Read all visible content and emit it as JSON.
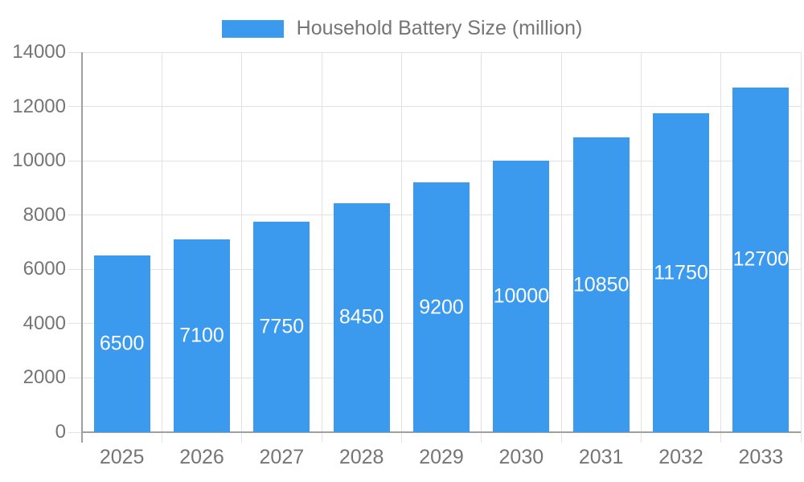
{
  "legend": {
    "label": "Household Battery Size (million)"
  },
  "colors": {
    "bar": "#3b99ee",
    "axis": "#a0a0a0",
    "grid": "#e2e2e2",
    "label": "#757575",
    "bar_label": "#ffffff",
    "background": "#ffffff"
  },
  "chart_data": {
    "type": "bar",
    "title": "Household Battery Size (million)",
    "categories": [
      "2025",
      "2026",
      "2027",
      "2028",
      "2029",
      "2030",
      "2031",
      "2032",
      "2033"
    ],
    "values": [
      6500,
      7100,
      7750,
      8450,
      9200,
      10000,
      10850,
      11750,
      12700
    ],
    "xlabel": "",
    "ylabel": "",
    "ylim": [
      0,
      14000
    ],
    "ytick_step": 2000,
    "ytick_labels": [
      "0",
      "2000",
      "4000",
      "6000",
      "8000",
      "10000",
      "12000",
      "14000"
    ],
    "grid": true,
    "legend_position": "top-center",
    "value_labels": "inside-center"
  }
}
